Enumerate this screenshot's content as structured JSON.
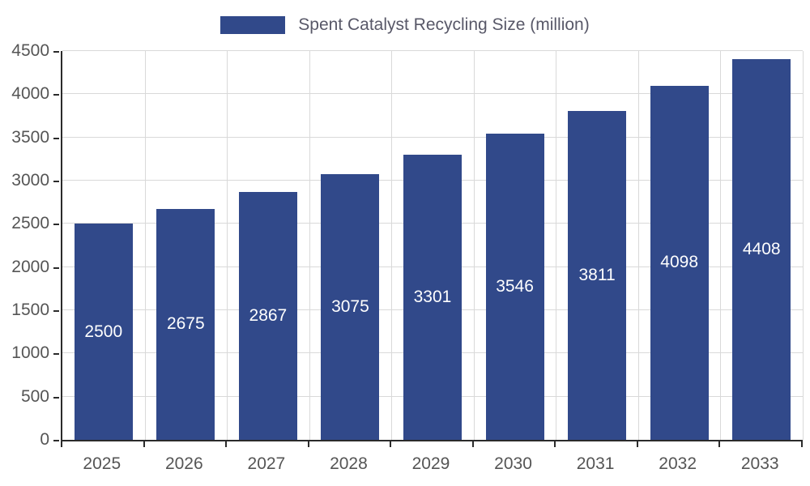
{
  "chart_data": {
    "type": "bar",
    "title": "Spent Catalyst Recycling Size (million)",
    "categories": [
      "2025",
      "2026",
      "2027",
      "2028",
      "2029",
      "2030",
      "2031",
      "2032",
      "2033"
    ],
    "values": [
      2500,
      2675,
      2867,
      3075,
      3301,
      3546,
      3811,
      4098,
      4408
    ],
    "xlabel": "",
    "ylabel": "",
    "ylim": [
      0,
      4500
    ],
    "ytick_step": 500,
    "grid": true,
    "legend_position": "top-center",
    "bar_color": "#31498a",
    "value_label_color": "#ffffff"
  },
  "legend": {
    "label": "Spent Catalyst Recycling Size (million)",
    "swatch_color": "#31498a"
  },
  "colors": {
    "axis": "#2b2b2b",
    "gridline": "#d9d9d9",
    "tick_text": "#555555",
    "legend_text": "#585868",
    "background": "#ffffff"
  }
}
